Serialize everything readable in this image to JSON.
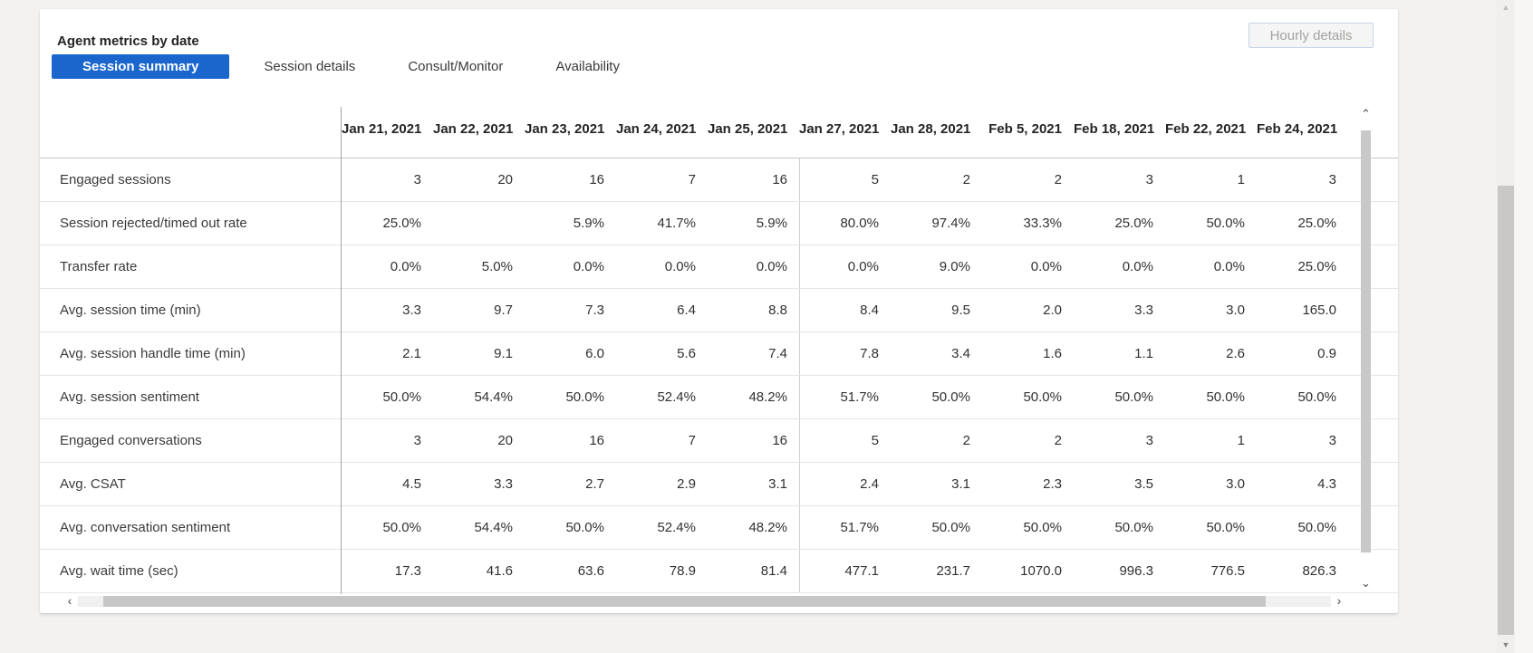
{
  "card": {
    "title": "Agent metrics by date",
    "action_button": {
      "label": "Hourly details",
      "disabled": true
    },
    "tabs": [
      {
        "label": "Session summary",
        "active": true
      },
      {
        "label": "Session details",
        "active": false
      },
      {
        "label": "Consult/Monitor",
        "active": false
      },
      {
        "label": "Availability",
        "active": false
      }
    ]
  },
  "table": {
    "columns": [
      "Jan 21, 2021",
      "Jan 22, 2021",
      "Jan 23, 2021",
      "Jan 24, 2021",
      "Jan 25, 2021",
      "Jan 27, 2021",
      "Jan 28, 2021",
      "Feb 5, 2021",
      "Feb 18, 2021",
      "Feb 22, 2021",
      "Feb 24, 2021"
    ],
    "group_separator_before_column_index": 5,
    "rows": [
      {
        "label": "Engaged sessions",
        "values": [
          "3",
          "20",
          "16",
          "7",
          "16",
          "5",
          "2",
          "2",
          "3",
          "1",
          "3"
        ]
      },
      {
        "label": "Session rejected/timed out rate",
        "values": [
          "25.0%",
          "",
          "5.9%",
          "41.7%",
          "5.9%",
          "80.0%",
          "97.4%",
          "33.3%",
          "25.0%",
          "50.0%",
          "25.0%"
        ]
      },
      {
        "label": "Transfer rate",
        "values": [
          "0.0%",
          "5.0%",
          "0.0%",
          "0.0%",
          "0.0%",
          "0.0%",
          "9.0%",
          "0.0%",
          "0.0%",
          "0.0%",
          "25.0%"
        ]
      },
      {
        "label": "Avg. session time (min)",
        "values": [
          "3.3",
          "9.7",
          "7.3",
          "6.4",
          "8.8",
          "8.4",
          "9.5",
          "2.0",
          "3.3",
          "3.0",
          "165.0"
        ]
      },
      {
        "label": "Avg. session handle time (min)",
        "values": [
          "2.1",
          "9.1",
          "6.0",
          "5.6",
          "7.4",
          "7.8",
          "3.4",
          "1.6",
          "1.1",
          "2.6",
          "0.9"
        ]
      },
      {
        "label": "Avg. session sentiment",
        "values": [
          "50.0%",
          "54.4%",
          "50.0%",
          "52.4%",
          "48.2%",
          "51.7%",
          "50.0%",
          "50.0%",
          "50.0%",
          "50.0%",
          "50.0%"
        ]
      },
      {
        "label": "Engaged conversations",
        "values": [
          "3",
          "20",
          "16",
          "7",
          "16",
          "5",
          "2",
          "2",
          "3",
          "1",
          "3"
        ]
      },
      {
        "label": "Avg. CSAT",
        "values": [
          "4.5",
          "3.3",
          "2.7",
          "2.9",
          "3.1",
          "2.4",
          "3.1",
          "2.3",
          "3.5",
          "3.0",
          "4.3"
        ]
      },
      {
        "label": "Avg. conversation sentiment",
        "values": [
          "50.0%",
          "54.4%",
          "50.0%",
          "52.4%",
          "48.2%",
          "51.7%",
          "50.0%",
          "50.0%",
          "50.0%",
          "50.0%",
          "50.0%"
        ]
      },
      {
        "label": "Avg. wait time (sec)",
        "values": [
          "17.3",
          "41.6",
          "63.6",
          "78.9",
          "81.4",
          "477.1",
          "231.7",
          "1070.0",
          "996.3",
          "776.5",
          "826.3"
        ]
      }
    ]
  },
  "icons": {
    "scroll_up": "⌃",
    "scroll_down": "⌄",
    "scroll_left": "‹",
    "scroll_right": "›",
    "page_scroll_up": "▲",
    "page_scroll_down": "▼"
  },
  "colors": {
    "active_tab": "#1a66cd",
    "card_background": "#ffffff",
    "page_background": "#f3f2f1",
    "disabled_text": "#a3a2a0"
  }
}
